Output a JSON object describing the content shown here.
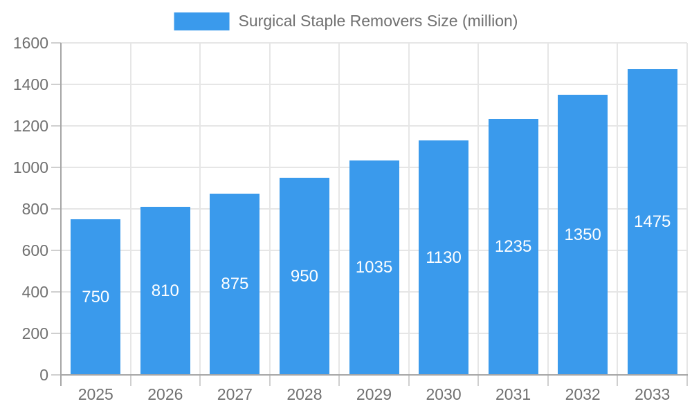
{
  "chart_data": {
    "type": "bar",
    "title": "Surgical Staple Removers Size (million)",
    "categories": [
      "2025",
      "2026",
      "2027",
      "2028",
      "2029",
      "2030",
      "2031",
      "2032",
      "2033"
    ],
    "values": [
      750,
      810,
      875,
      950,
      1035,
      1130,
      1235,
      1350,
      1475
    ],
    "ylim": [
      0,
      1600
    ],
    "ytick_step": 200,
    "yticks": [
      0,
      200,
      400,
      600,
      800,
      1000,
      1200,
      1400,
      1600
    ],
    "grid": true,
    "legend_position": "top",
    "bar_labels_inside": true,
    "colors": {
      "bar": "#3A9AEC",
      "bar_label": "#FFFFFF",
      "axis_text": "#707070",
      "gridline": "#E6E6E6",
      "axis_line": "#A6A6A6",
      "tick": "#CFCFCF",
      "background": "#FFFFFF"
    }
  }
}
